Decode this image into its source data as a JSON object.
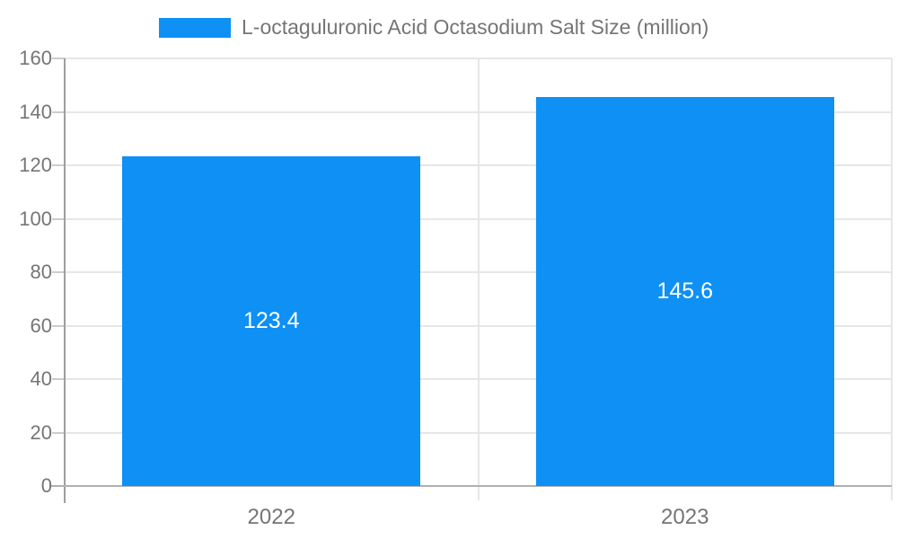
{
  "chart_data": {
    "type": "bar",
    "legend": {
      "label": "L-octaguluronic Acid Octasodium Salt Size (million)",
      "position": "top"
    },
    "categories": [
      "2022",
      "2023"
    ],
    "series": [
      {
        "name": "L-octaguluronic Acid Octasodium Salt Size (million)",
        "values": [
          123.4,
          145.6
        ]
      }
    ],
    "data_labels": [
      "123.4",
      "145.6"
    ],
    "ylim": [
      0,
      160
    ],
    "yticks": [
      0,
      20,
      40,
      60,
      80,
      100,
      120,
      140,
      160
    ],
    "grid": true,
    "colors": {
      "bar": "#0e90f5",
      "data_label": "#ffffff",
      "axis_text": "#757575",
      "gridline": "#e6e6e6",
      "tick": "#cccccc",
      "axis_line_y": "#9e9e9e",
      "axis_line_x": "#b0b0b0"
    }
  }
}
